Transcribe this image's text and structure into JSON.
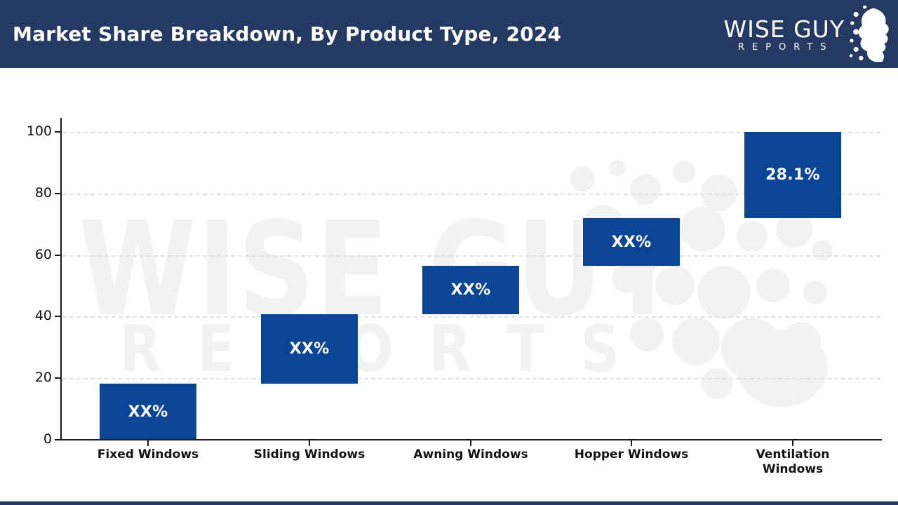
{
  "header": {
    "title": "Market Share Breakdown, By Product Type, 2024",
    "logo": {
      "line1": "WISE GUY",
      "line2": "REPORTS"
    }
  },
  "watermark": {
    "line1": "WISE GUY",
    "line2": "R E P O R T S"
  },
  "colors": {
    "header_bg": "#253a63",
    "footer_bg": "#253a63",
    "bar_color": "#0a4596",
    "bar_label_color": "#ffffff",
    "watermark_color": "#f2f2f4",
    "gridline_color": "#e2e2e2",
    "axis_color": "#1a1a1a"
  },
  "chart_data": {
    "type": "bar",
    "subtype": "waterfall",
    "title": "Market Share Breakdown, By Product Type, 2024",
    "xlabel": "",
    "ylabel": "",
    "ylim": [
      0,
      100
    ],
    "yticks": [
      0,
      20,
      40,
      60,
      80,
      100
    ],
    "grid": "horizontal-dashed",
    "legend": "none",
    "categories": [
      "Fixed Windows",
      "Sliding Windows",
      "Awning Windows",
      "Hopper Windows",
      "Ventilation Windows"
    ],
    "bars": [
      {
        "category": "Fixed Windows",
        "start": 0,
        "end": 18.2,
        "label": "XX%"
      },
      {
        "category": "Sliding Windows",
        "start": 18.2,
        "end": 40.8,
        "label": "XX%"
      },
      {
        "category": "Awning Windows",
        "start": 40.8,
        "end": 56.5,
        "label": "XX%"
      },
      {
        "category": "Hopper Windows",
        "start": 56.5,
        "end": 71.9,
        "label": "XX%"
      },
      {
        "category": "Ventilation Windows",
        "start": 71.9,
        "end": 100,
        "label": "28.1%"
      }
    ]
  }
}
